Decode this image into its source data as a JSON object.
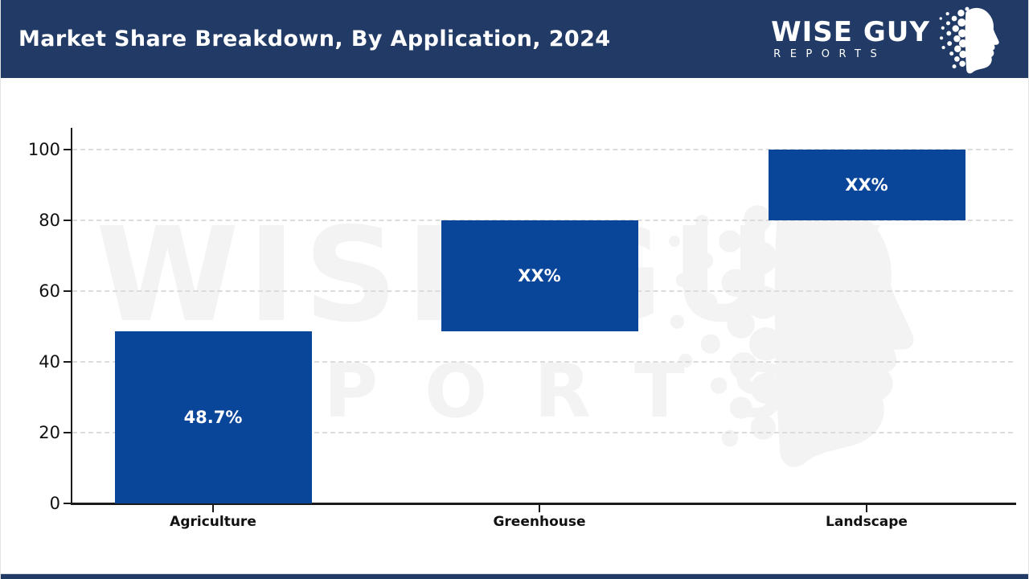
{
  "header": {
    "title": "Market Share Breakdown, By Application, 2024",
    "logo": {
      "line1": "WISE GUY",
      "line2": "REPORTS"
    }
  },
  "watermark": {
    "line1": "WISE GUY",
    "line2": "REPORTS"
  },
  "chart_data": {
    "type": "bar",
    "subtype": "waterfall",
    "title": "Market Share Breakdown, By Application, 2024",
    "categories": [
      "Agriculture",
      "Greenhouse",
      "Landscape"
    ],
    "segments": [
      {
        "category": "Agriculture",
        "start": 0,
        "end": 48.7,
        "label": "48.7%"
      },
      {
        "category": "Greenhouse",
        "start": 48.7,
        "end": 80,
        "label": "XX%"
      },
      {
        "category": "Landscape",
        "start": 80,
        "end": 100,
        "label": "XX%"
      }
    ],
    "y_ticks": [
      0,
      20,
      40,
      60,
      80,
      100
    ],
    "ylim": [
      0,
      100
    ],
    "xlabel": "",
    "ylabel": "",
    "grid": "horizontal-dashed",
    "legend": "none",
    "bar_color": "#09469a",
    "bar_label_color": "#ffffff",
    "header_color": "#213a66"
  }
}
